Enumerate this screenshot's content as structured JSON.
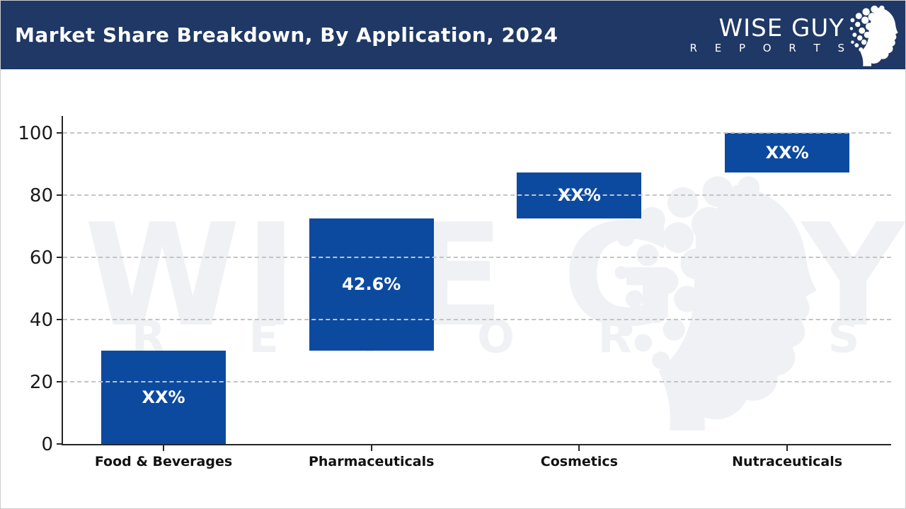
{
  "header": {
    "title": "Market Share Breakdown, By Application, 2024",
    "logo": {
      "line1": "WISE GUY",
      "line2": "R E P O R T S"
    }
  },
  "watermark": {
    "line1": "WISE GUY",
    "line2": "R E P O R T S"
  },
  "chart_data": {
    "type": "bar",
    "subtype": "floating-waterfall",
    "title": "Market Share Breakdown, By Application, 2024",
    "categories": [
      "Food & Beverages",
      "Pharmaceuticals",
      "Cosmetics",
      "Nutraceuticals"
    ],
    "bars": [
      {
        "category": "Food & Beverages",
        "start": 0,
        "end": 30,
        "label": "XX%"
      },
      {
        "category": "Pharmaceuticals",
        "start": 30,
        "end": 72.6,
        "label": "42.6%",
        "value": 42.6
      },
      {
        "category": "Cosmetics",
        "start": 72.6,
        "end": 87.2,
        "label": "XX%"
      },
      {
        "category": "Nutraceuticals",
        "start": 87.2,
        "end": 100,
        "label": "XX%"
      }
    ],
    "xlabel": "",
    "ylabel": "",
    "yticks": [
      0,
      20,
      40,
      60,
      80,
      100
    ],
    "ylim": [
      0,
      105
    ],
    "grid": true,
    "gridline_style": "dashed",
    "legend": false
  },
  "colors": {
    "header_bg": "#1f3865",
    "header_text": "#ffffff",
    "bar_fill": "#0c4aa0",
    "bar_label": "#ffffff",
    "axis": "#262626",
    "gridline": "#c4c4c4",
    "watermark": "#eff1f4",
    "tick_text": "#1a1a1a",
    "page_border": "#cccccc"
  }
}
